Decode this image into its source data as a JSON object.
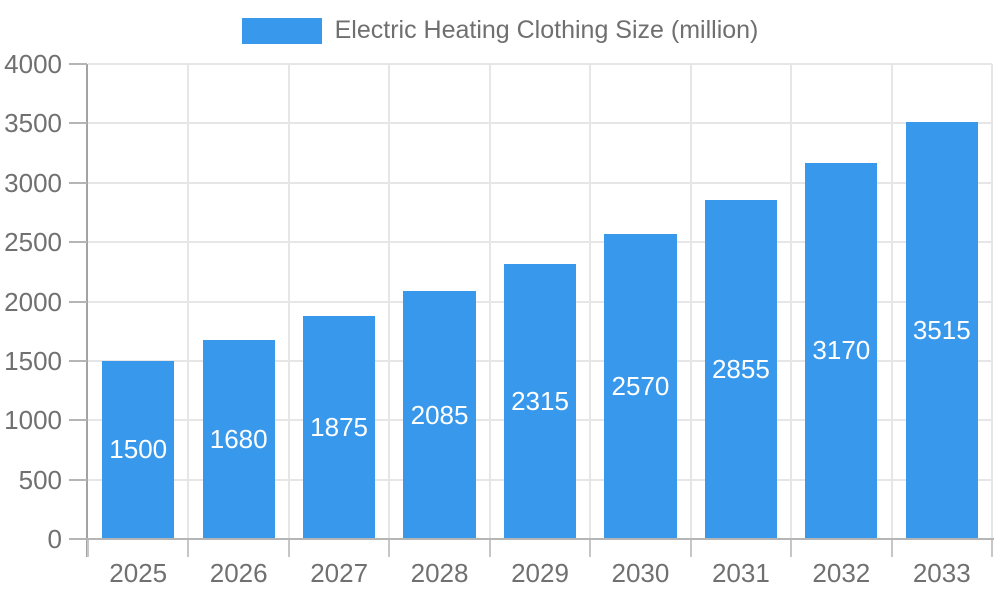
{
  "chart_data": {
    "type": "bar",
    "title": "Electric Heating Clothing Size (million)",
    "categories": [
      "2025",
      "2026",
      "2027",
      "2028",
      "2029",
      "2030",
      "2031",
      "2032",
      "2033"
    ],
    "values": [
      1500,
      1680,
      1875,
      2085,
      2315,
      2570,
      2855,
      3170,
      3515
    ],
    "value_labels": [
      "1500",
      "1680",
      "1875",
      "2085",
      "2315",
      "2570",
      "2855",
      "3170",
      "3515"
    ],
    "series": [
      {
        "name": "Electric Heating Clothing Size (million)",
        "values": [
          1500,
          1680,
          1875,
          2085,
          2315,
          2570,
          2855,
          3170,
          3515
        ]
      }
    ],
    "xlabel": "",
    "ylabel": "",
    "ylim": [
      0,
      4000
    ],
    "ytick_step": 500,
    "yticks": [
      "0",
      "500",
      "1000",
      "1500",
      "2000",
      "2500",
      "3000",
      "3500",
      "4000"
    ],
    "grid": true,
    "legend_position": "top-center",
    "bar_color": "#3899EC",
    "value_label_color": "#ffffff",
    "axis_text_color": "#707070"
  },
  "legend": {
    "label": "Electric Heating Clothing Size (million)"
  }
}
